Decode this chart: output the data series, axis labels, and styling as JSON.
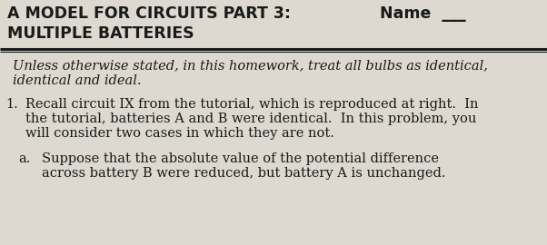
{
  "bg_color": "#ddd9d0",
  "title_line1": "A MODEL FOR CIRCUITS PART 3:",
  "title_line2": "MULTIPLE BATTERIES",
  "name_label": "Name",
  "name_underline": "___",
  "italic_line1": "Unless otherwise stated, in this homework, treat all bulbs as identical,",
  "italic_line2": "identical and ideal.",
  "item1_line1": "Recall circuit IX from the tutorial, which is reproduced at right.  In",
  "item1_line2": "the tutorial, batteries A and B were identical.  In this problem, you",
  "item1_line3": "will consider two cases in which they are not.",
  "item_a_line1": "Suppose that the absolute value of the potential difference",
  "item_a_line2": "across battery B were reduced, but battery A is unchanged.",
  "title_fontsize": 12.5,
  "body_fontsize": 10.5,
  "text_color": "#1a1a1a",
  "figwidth": 6.02,
  "figheight": 2.7,
  "dpi": 100
}
